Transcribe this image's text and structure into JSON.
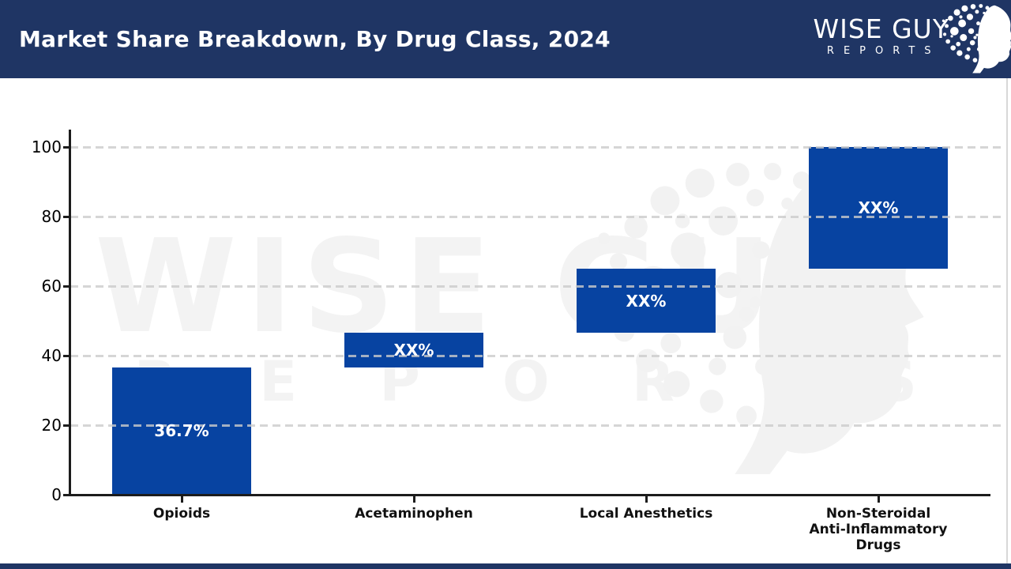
{
  "header": {
    "title": "Market Share Breakdown, By Drug Class, 2024",
    "logo": {
      "line1": "WISE GUY",
      "line2": "REPORTS"
    }
  },
  "watermark": {
    "line1": "WISE GUY",
    "line2": "R E P O R T S"
  },
  "colors": {
    "header_bg": "#1f3564",
    "bar_blue": "#0743a1",
    "grid_gray": "#d9d9d9",
    "axis_black": "#1c1c1c",
    "bar_label_white": "#ffffff",
    "watermark_gray": "#f2f2f2"
  },
  "chart_data": {
    "type": "bar",
    "subtype": "waterfall",
    "title": "Market Share Breakdown, By Drug Class, 2024",
    "categories": [
      "Opioids",
      "Acetaminophen",
      "Local Anesthetics",
      "Non-Steroidal\nAnti-Inflammatory\nDrugs"
    ],
    "segments": [
      {
        "start": 0,
        "end": 36.7,
        "label": "36.7%"
      },
      {
        "start": 36.7,
        "end": 46.5,
        "label": "XX%"
      },
      {
        "start": 46.5,
        "end": 65,
        "label": "XX%"
      },
      {
        "start": 65,
        "end": 100,
        "label": "XX%"
      }
    ],
    "xlabel": "",
    "ylabel": "",
    "ylim": [
      0,
      100
    ],
    "yticks": [
      0,
      20,
      40,
      60,
      80,
      100
    ],
    "grid": "horizontal-dashed",
    "legend": "none"
  }
}
